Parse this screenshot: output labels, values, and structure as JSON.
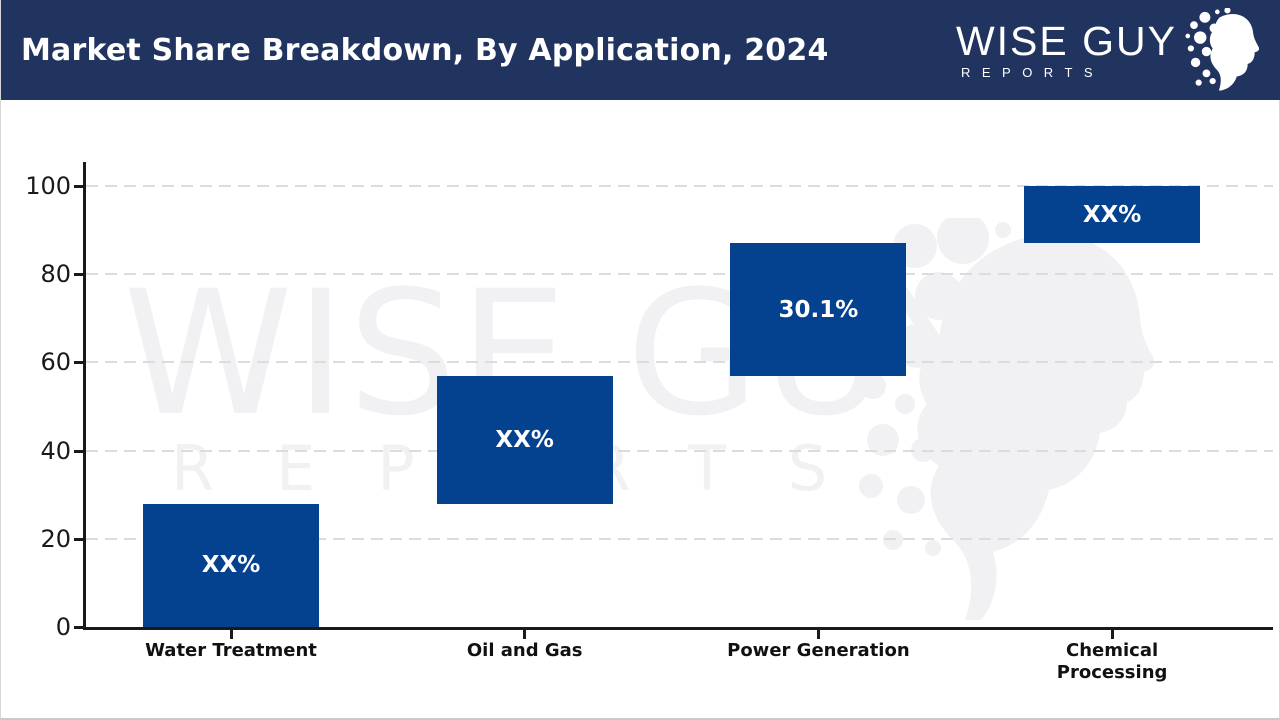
{
  "page": {
    "border_color": "#d6d6d6",
    "background": "#ffffff"
  },
  "header": {
    "bg_color": "#20345f",
    "title": "Market Share Breakdown, By Application, 2024",
    "logo": {
      "line1": "WISE GUY",
      "line2": "REPORTS"
    }
  },
  "watermark": {
    "line1": "WISE GUY",
    "line2": "REPORTS"
  },
  "chart_data": {
    "type": "bar",
    "subtype": "floating-waterfall",
    "title": "Market Share Breakdown, By Application, 2024",
    "categories": [
      "Water Treatment",
      "Oil and Gas",
      "Power Generation",
      "Chemical Processing"
    ],
    "bars": [
      {
        "category": "Water Treatment",
        "display_category": "Water Treatment",
        "start": 0,
        "end": 27.9,
        "label": "XX%"
      },
      {
        "category": "Oil and Gas",
        "display_category": "Oil and Gas",
        "start": 27.9,
        "end": 56.9,
        "label": "XX%"
      },
      {
        "category": "Power Generation",
        "display_category": "Power Generation",
        "start": 56.9,
        "end": 87.0,
        "label": "30.1%"
      },
      {
        "category": "Chemical Processing",
        "display_category": "Chemical\nProcessing",
        "start": 87.0,
        "end": 99.9,
        "label": "XX%"
      }
    ],
    "xlabel": "",
    "ylabel": "",
    "yticks": [
      0,
      20,
      40,
      60,
      80,
      100
    ],
    "ylim": [
      0,
      105
    ],
    "grid": true,
    "grid_style": "dashed",
    "grid_color": "#dcdcdc",
    "axis_color": "#1a1a1a",
    "bar_color": "#04418f",
    "bar_label_color": "#ffffff",
    "legend": null
  }
}
